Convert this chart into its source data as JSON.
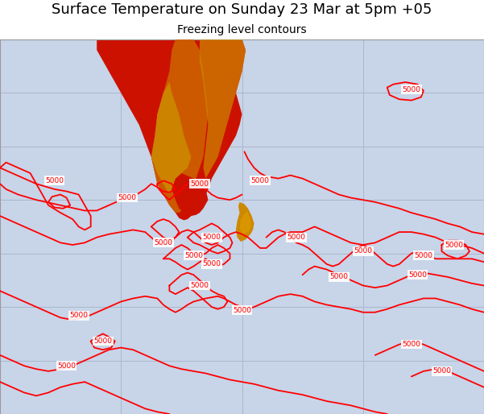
{
  "title": "Surface Temperature on Sunday 23 Mar at 5pm +05",
  "subtitle": "Freezing level contours",
  "title_fontsize": 13,
  "subtitle_fontsize": 10,
  "background_color": "#ffffff",
  "map_bg_color": "#c8d4e8",
  "border_color": "#999999",
  "contour_color": "#ff0000",
  "contour_lw": 1.3,
  "contour_label_fontsize": 6.5,
  "grid_color": "#aab8cc",
  "figsize": [
    6.01,
    5.14
  ],
  "dpi": 100,
  "xlim": [
    60,
    100
  ],
  "ylim": [
    -10,
    25
  ],
  "xticks": [
    60,
    70,
    80,
    90,
    100
  ],
  "yticks": [
    -10,
    -5,
    0,
    5,
    10,
    15,
    20,
    25
  ],
  "india_red": "#cc1100",
  "india_orange": "#cc6600",
  "india_gold": "#cc8800",
  "sri_lanka_orange": "#cc8800"
}
